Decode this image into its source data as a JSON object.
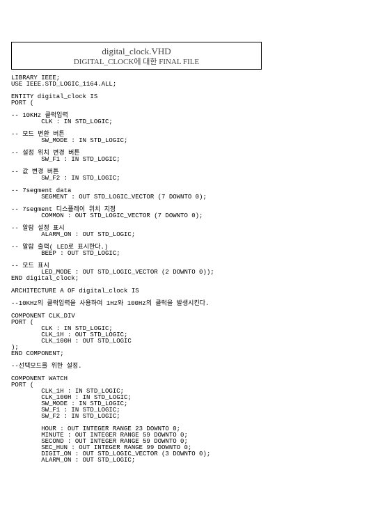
{
  "colors": {
    "page_bg": "#ffffff",
    "text": "#000000",
    "title_text": "#444444",
    "border": "#000000"
  },
  "fonts": {
    "title_family": "Times New Roman",
    "title_size_pt": 13,
    "subtitle_size_pt": 11,
    "code_family": "Courier New",
    "code_size_pt": 9
  },
  "title_box": {
    "line1": "digital_clock.VHD",
    "line2": "DIGITAL_CLOCK에 대한 FINAL FILE"
  },
  "code": {
    "lines": [
      "LIBRARY IEEE;",
      "USE IEEE.STD_LOGIC_1164.ALL;",
      "",
      "ENTITY digital_clock IS",
      "PORT (",
      "",
      "-- 10KHz 클럭입력",
      "        CLK : IN STD_LOGIC;",
      "",
      "-- 모드 변환 버튼",
      "        SW_MODE : IN STD_LOGIC;",
      "",
      "-- 설정 위치 변경 버튼",
      "        SW_F1 : IN STD_LOGIC;",
      "",
      "-- 값 변경 버튼",
      "        SW_F2 : IN STD_LOGIC;",
      "",
      "-- 7segment data",
      "        SEGMENT : OUT STD_LOGIC_VECTOR (7 DOWNTO 0);",
      "",
      "-- 7segment 디스플레이 위치 지정",
      "        COMMON : OUT STD_LOGIC_VECTOR (7 DOWNTO 0);",
      "",
      "-- 알람 설정 표시",
      "        ALARM_ON : OUT STD_LOGIC;",
      "",
      "-- 알람 출력( LED로 표시한다.)",
      "        BEEP : OUT STD_LOGIC;",
      "",
      "-- 모드 표시",
      "        LED_MODE : OUT STD_LOGIC_VECTOR (2 DOWNTO 0));",
      "END digital_clock;",
      "",
      "ARCHITECTURE A OF digital_clock IS",
      "",
      "--10KHz의 클럭입력을 사용하여 1Hz와 100Hz의 클럭을 발생시킨다.",
      "",
      "COMPONENT CLK_DIV",
      "PORT (",
      "        CLK : IN STD_LOGIC;",
      "        CLK_1H : OUT STD_LOGIC;",
      "        CLK_100H : OUT STD_LOGIC",
      ");",
      "END COMPONENT;",
      "",
      "--선택모드를 위한 설정.",
      "",
      "COMPONENT WATCH",
      "PORT (",
      "        CLK_1H : IN STD_LOGIC;",
      "        CLK_100H : IN STD_LOGIC;",
      "        SW_MODE : IN STD_LOGIC;",
      "        SW_F1 : IN STD_LOGIC;",
      "        SW_F2 : IN STD_LOGIC;",
      "",
      "        HOUR : OUT INTEGER RANGE 23 DOWNTO 0;",
      "        MINUTE : OUT INTEGER RANGE 59 DOWNTO 0;",
      "        SECOND : OUT INTEGER RANGE 59 DOWNTO 0;",
      "        SEC_HUN : OUT INTEGER RANGE 99 DOWNTO 0;",
      "        DIGIT_ON : OUT STD_LOGIC_VECTOR (3 DOWNTO 0);",
      "        ALARM_ON : OUT STD_LOGIC;"
    ]
  }
}
